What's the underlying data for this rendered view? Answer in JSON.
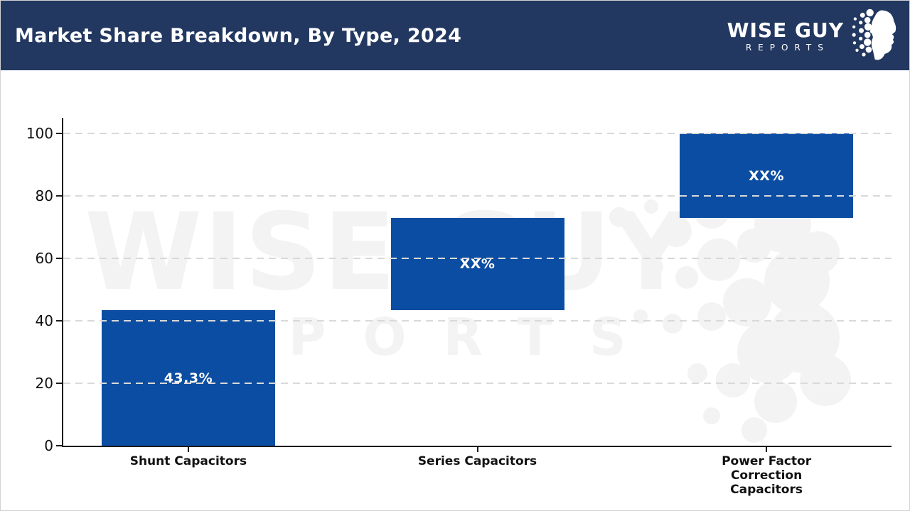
{
  "header": {
    "title": "Market Share Breakdown, By Type, 2024",
    "logo_line1": "WISE GUY",
    "logo_line2": "REPORTS"
  },
  "watermark": {
    "line1": "WISE GUY",
    "line2": "REPORTS"
  },
  "chart_data": {
    "type": "bar",
    "variant": "stacked-waterfall",
    "title": "Market Share Breakdown, By Type, 2024",
    "categories": [
      "Shunt Capacitors",
      "Series Capacitors",
      "Power Factor Correction Capacitors"
    ],
    "segments": [
      {
        "category": "Shunt Capacitors",
        "start": 0,
        "end": 43.3,
        "value_label": "43.3%",
        "value_est": 43.3
      },
      {
        "category": "Series Capacitors",
        "start": 43.3,
        "end": 72.9,
        "value_label": "XX%",
        "value_est": 29.6
      },
      {
        "category": "Power Factor Correction Capacitors",
        "start": 72.9,
        "end": 100,
        "value_label": "XX%",
        "value_est": 27.1
      }
    ],
    "xlabel": "",
    "ylabel": "",
    "yticks": [
      0,
      20,
      40,
      60,
      80,
      100
    ],
    "ylim": [
      0,
      105
    ],
    "grid": true,
    "grid_style": "dashed-horizontal",
    "legend": false,
    "colors": {
      "bar": "#0b4da2",
      "bar_label": "#ffffff",
      "grid": "#d9d9d9",
      "axis": "#1b1b1b",
      "tick_label": "#111111",
      "header_bg": "#233861",
      "watermark": "#f3f3f3"
    }
  }
}
